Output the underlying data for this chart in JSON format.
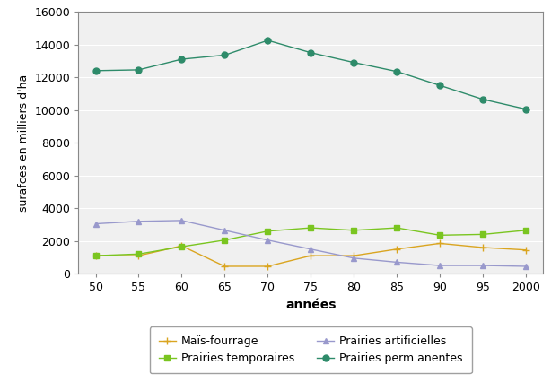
{
  "x_labels": [
    "50",
    "55",
    "60",
    "65",
    "70",
    "75",
    "80",
    "85",
    "90",
    "95",
    "2000"
  ],
  "x_plot": [
    0,
    1,
    2,
    3,
    4,
    5,
    6,
    7,
    8,
    9,
    10
  ],
  "series_order": [
    "Maïs-fourrage",
    "Prairies temporaires",
    "Prairies artificielles",
    "Prairies perm anentes"
  ],
  "series": {
    "Maïs-fourrage": {
      "values": [
        1100,
        1100,
        1700,
        450,
        450,
        1100,
        1100,
        1500,
        1850,
        1600,
        1450
      ],
      "color": "#DAA520",
      "marker": "+",
      "markersize": 6
    },
    "Prairies temporaires": {
      "values": [
        1100,
        1200,
        1650,
        2050,
        2600,
        2800,
        2650,
        2800,
        2350,
        2400,
        2650
      ],
      "color": "#7AC520",
      "marker": "s",
      "markersize": 5
    },
    "Prairies artificielles": {
      "values": [
        3050,
        3200,
        3250,
        2650,
        2050,
        1500,
        950,
        700,
        500,
        500,
        450
      ],
      "color": "#9999CC",
      "marker": "^",
      "markersize": 5
    },
    "Prairies perm anentes": {
      "values": [
        12400,
        12450,
        13100,
        13350,
        14250,
        13500,
        12900,
        12350,
        11500,
        10650,
        10050
      ],
      "color": "#2E8B6A",
      "marker": "o",
      "markersize": 5
    }
  },
  "ylabel": "surafces en milliers d'ha",
  "xlabel": "années",
  "ylim": [
    0,
    16000
  ],
  "yticks": [
    0,
    2000,
    4000,
    6000,
    8000,
    10000,
    12000,
    14000,
    16000
  ],
  "plot_bg_color": "#f0f0f0",
  "fig_bg_color": "#ffffff",
  "grid_color": "#ffffff",
  "legend_ncol": 2,
  "legend_order": [
    "Maïs-fourrage",
    "Prairies temporaires",
    "Prairies artificielles",
    "Prairies perm anentes"
  ]
}
